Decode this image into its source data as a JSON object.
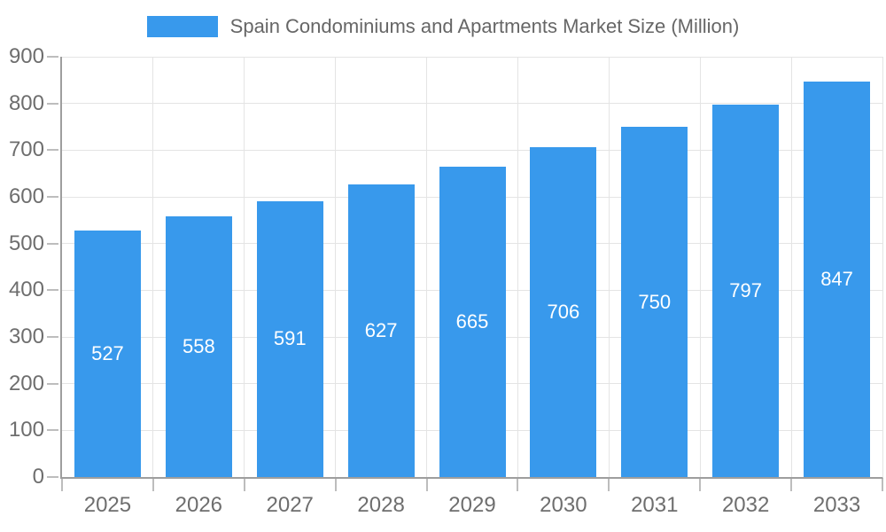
{
  "chart_data": {
    "type": "bar",
    "title": "Spain Condominiums and Apartments Market Size (Million)",
    "categories": [
      "2025",
      "2026",
      "2027",
      "2028",
      "2029",
      "2030",
      "2031",
      "2032",
      "2033"
    ],
    "values": [
      527,
      558,
      591,
      627,
      665,
      706,
      750,
      797,
      847
    ],
    "xlabel": "",
    "ylabel": "",
    "ylim": [
      0,
      900
    ],
    "ytick_step": 100,
    "grid": true,
    "legend_position": "top",
    "colors": {
      "bar": "#3899EC",
      "bar_label": "#FFFFFF",
      "axis_text": "#6E6E6E",
      "legend_text": "#666666",
      "gridline": "#E4E4E4",
      "axis_line": "#9E9E9E",
      "tick": "#BDBDBD",
      "background": "#FFFFFF"
    }
  }
}
